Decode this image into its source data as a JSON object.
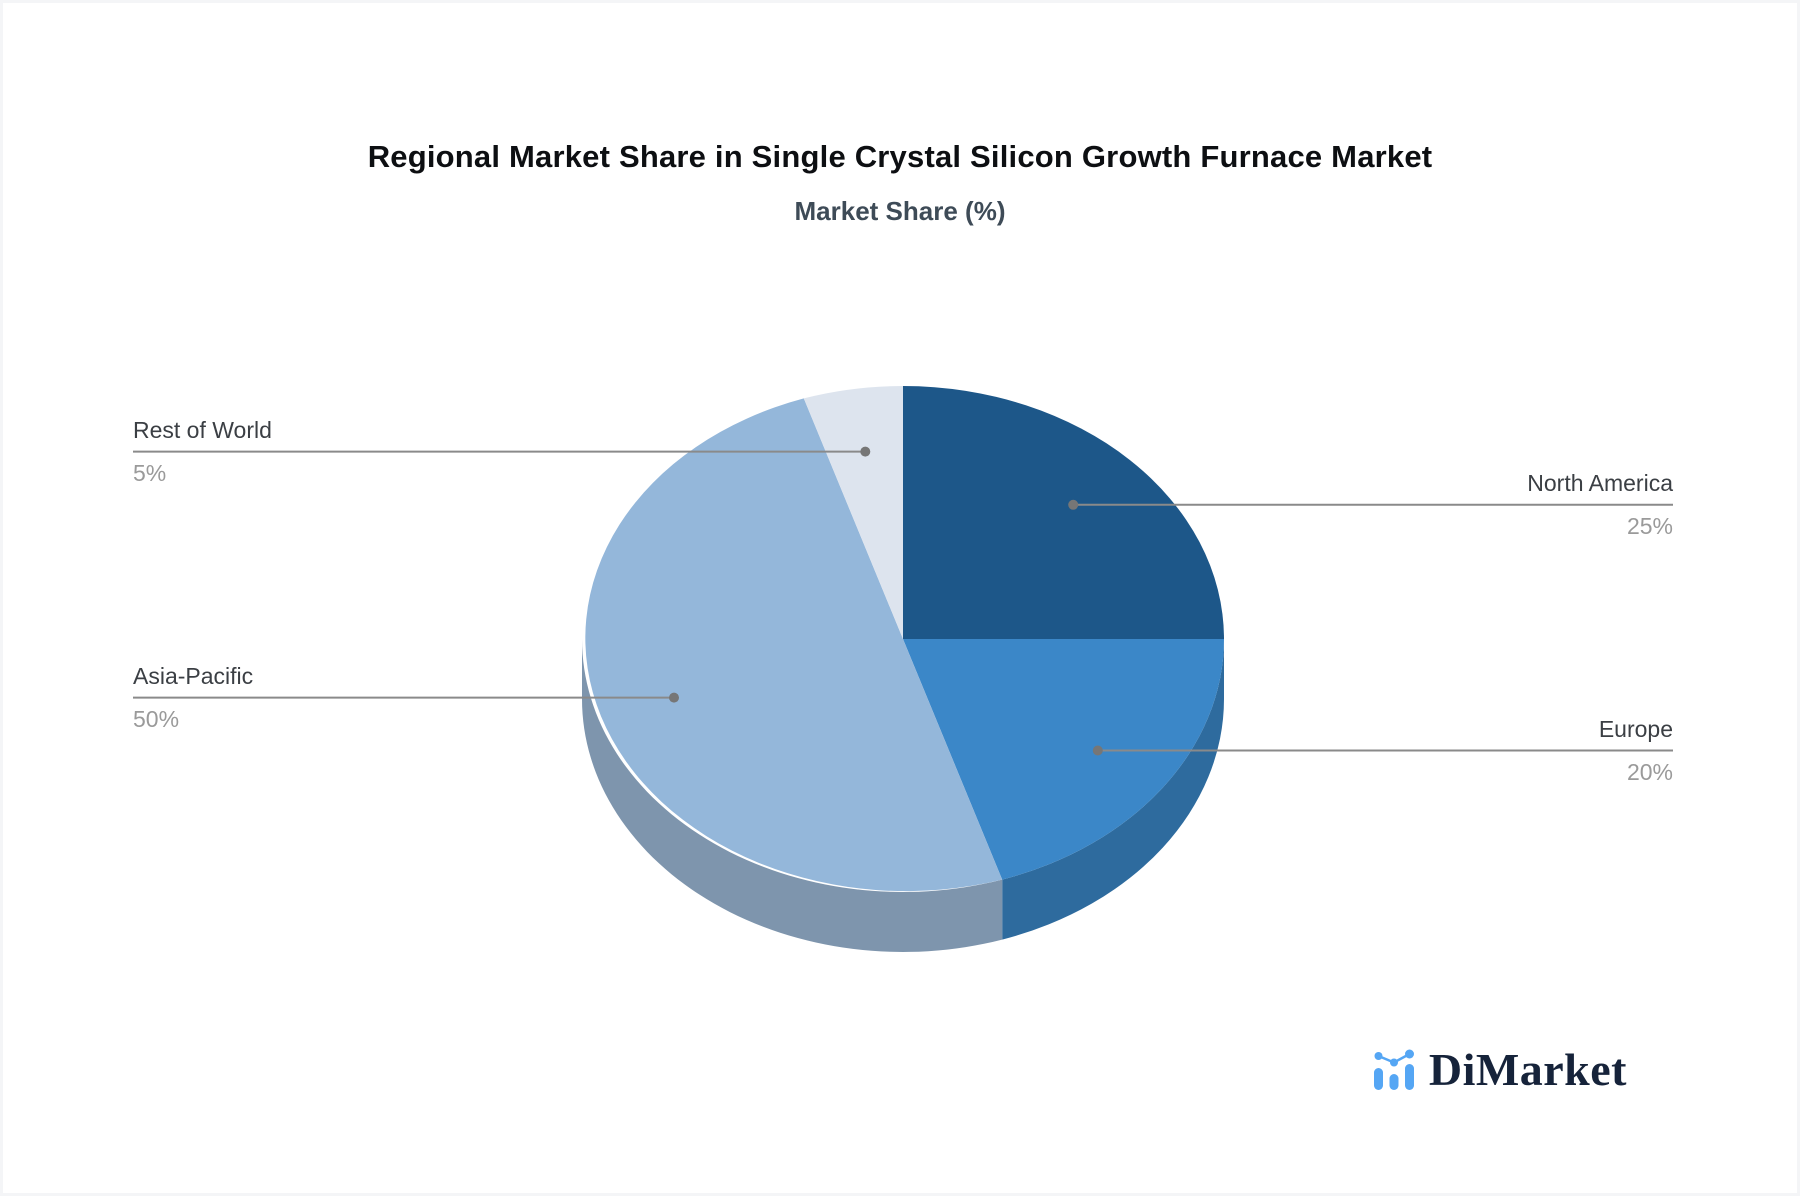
{
  "page": {
    "background": "#ffffff",
    "border_color": "#f4f5f7"
  },
  "header": {
    "title": "Regional Market Share in Single Crystal Silicon Growth Furnace Market",
    "subtitle": "Market Share (%)"
  },
  "chart_data": {
    "type": "pie",
    "title": "Regional Market Share in Single Crystal Silicon Growth Furnace Market",
    "subtitle": "Market Share (%)",
    "unit": "%",
    "effect": "3d",
    "start_angle_deg": 0,
    "direction": "clockwise",
    "legend_position": "none",
    "slices": [
      {
        "label": "North America",
        "value": 25,
        "display": "25%",
        "color": "#1d5789",
        "side_color": "#174a75",
        "label_side": "right"
      },
      {
        "label": "Europe",
        "value": 20,
        "display": "20%",
        "color": "#3b87c8",
        "side_color": "#2e6b9e",
        "label_side": "right"
      },
      {
        "label": "Asia-Pacific",
        "value": 50,
        "display": "50%",
        "color": "#94b7da",
        "side_color": "#7e95ad",
        "label_side": "left"
      },
      {
        "label": "Rest of World",
        "value": 5,
        "display": "5%",
        "color": "#dde4ee",
        "side_color": "#c5ccd8",
        "label_side": "left"
      }
    ],
    "label_color": "#3b3f44",
    "value_color": "#9a9a9a",
    "leader_line_color": "#8a8a8a",
    "leader_dot_color": "#767676"
  },
  "branding": {
    "logo_text": "DiMarket",
    "logo_icon": "bar-chart-trend-icon",
    "logo_text_color": "#16233a",
    "logo_accent_color": "#55a6f4"
  }
}
